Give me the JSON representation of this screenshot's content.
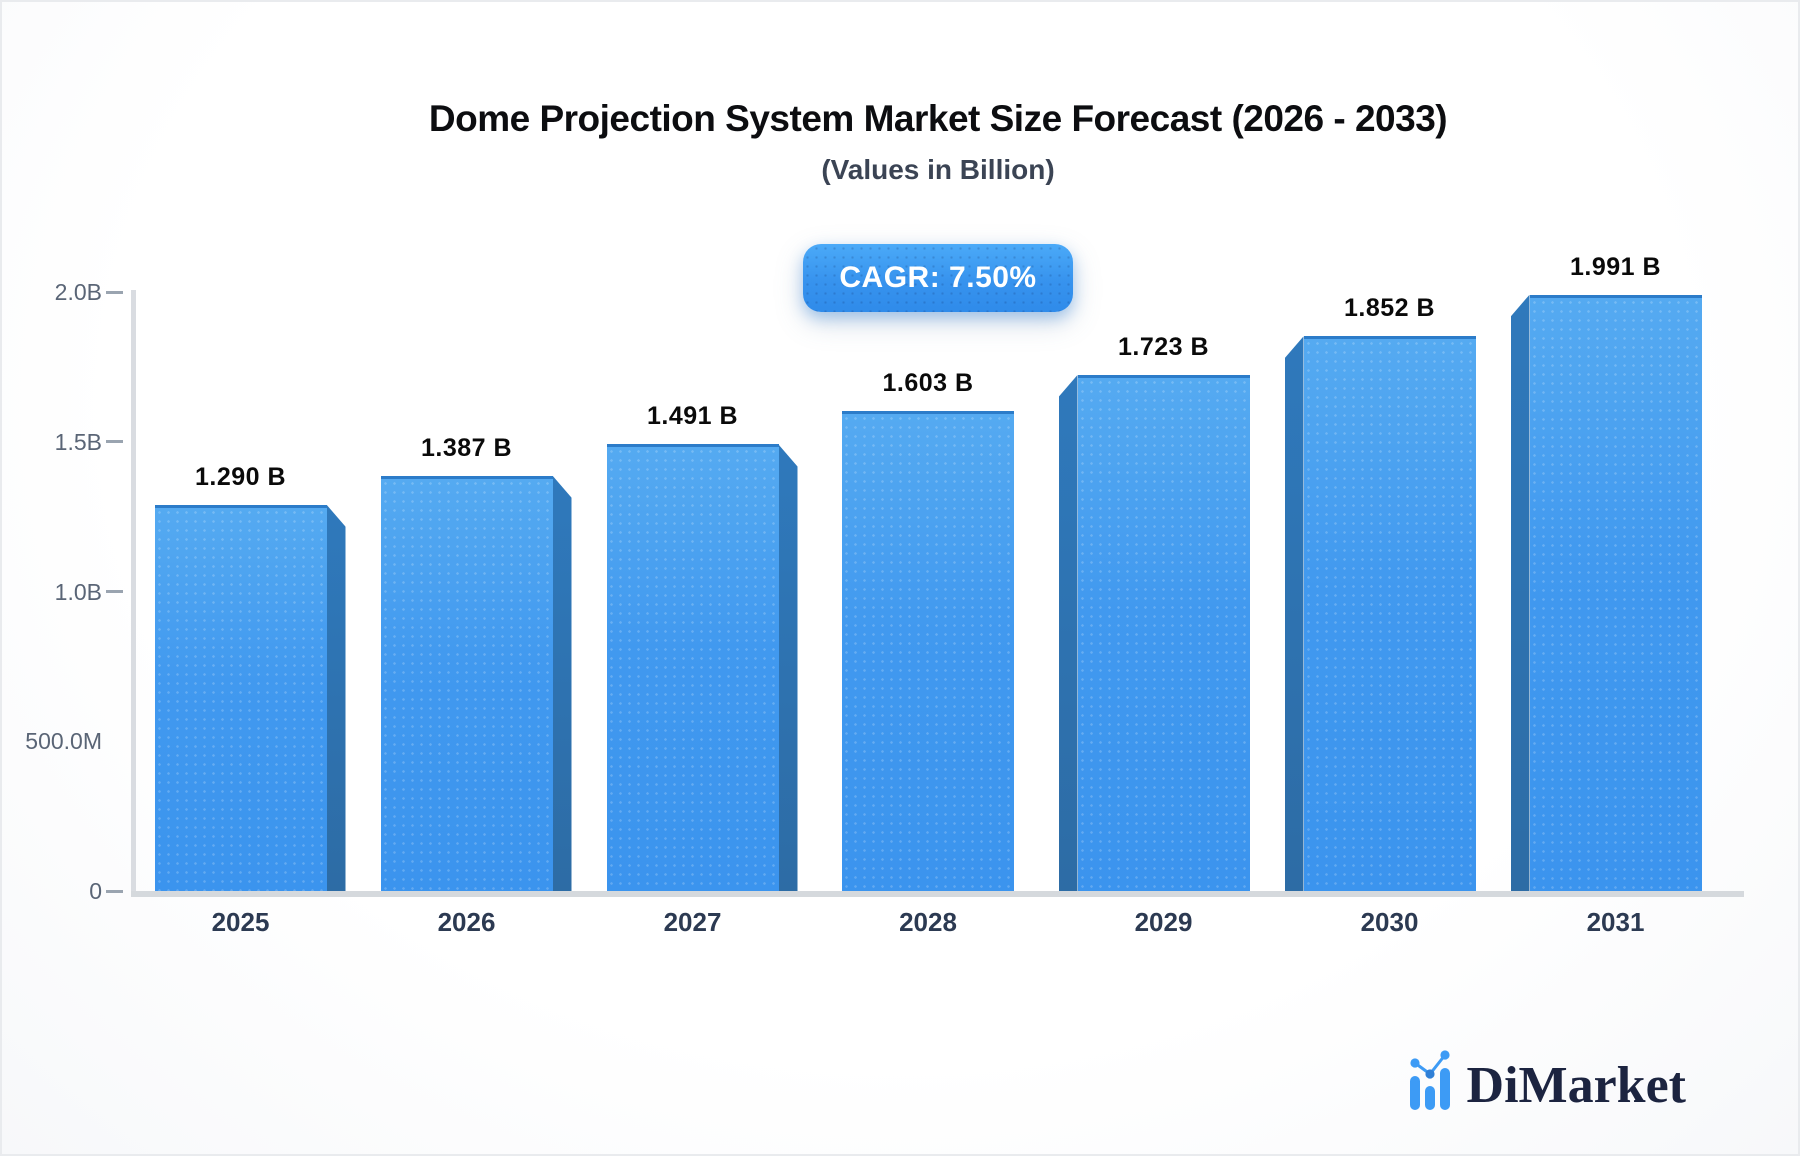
{
  "chart_data": {
    "type": "bar",
    "title": "Dome Projection System Market Size Forecast (2026 - 2033)",
    "subtitle": "(Values in Billion)",
    "cagr_badge": "CAGR: 7.50%",
    "categories": [
      "2025",
      "2026",
      "2027",
      "2028",
      "2029",
      "2030",
      "2031"
    ],
    "values": [
      1.29,
      1.387,
      1.491,
      1.603,
      1.723,
      1.852,
      1.991
    ],
    "value_labels": [
      "1.290 B",
      "1.387 B",
      "1.491 B",
      "1.603 B",
      "1.723 B",
      "1.852 B",
      "1.991 B"
    ],
    "ylim": [
      0,
      2.0
    ],
    "y_axis": {
      "ticks": [
        {
          "label": "2.0B",
          "value": 2.0,
          "dash": true
        },
        {
          "label": "1.5B",
          "value": 1.5,
          "dash": true
        },
        {
          "label": "1.0B",
          "value": 1.0,
          "dash": true
        },
        {
          "label": "500.0M",
          "value": 0.5,
          "dash": false
        },
        {
          "label": "0",
          "value": 0.0,
          "dash": true
        }
      ]
    },
    "grid": "off",
    "legend": "none",
    "colors": {
      "bar_face": "#4199EF",
      "bar_face_top_edge": "#2C7CC9",
      "bar_side": "#2E74B2",
      "badge_background": "#3793EE",
      "badge_text": "#FFFFFF",
      "axis_line": "#D9DCE1",
      "tick_text": "#5A6576",
      "category_text": "#2C3A52",
      "value_text": "#0A0A0A",
      "title_text": "#0C0D10",
      "subtitle_text": "#3B4454"
    }
  },
  "branding": {
    "logo_text": "DiMarket",
    "logo_icon": "mini-bar-chart-with-sparkline-icon",
    "logo_text_color": "#1C2440",
    "logo_icon_color": "#3D9BF5"
  }
}
